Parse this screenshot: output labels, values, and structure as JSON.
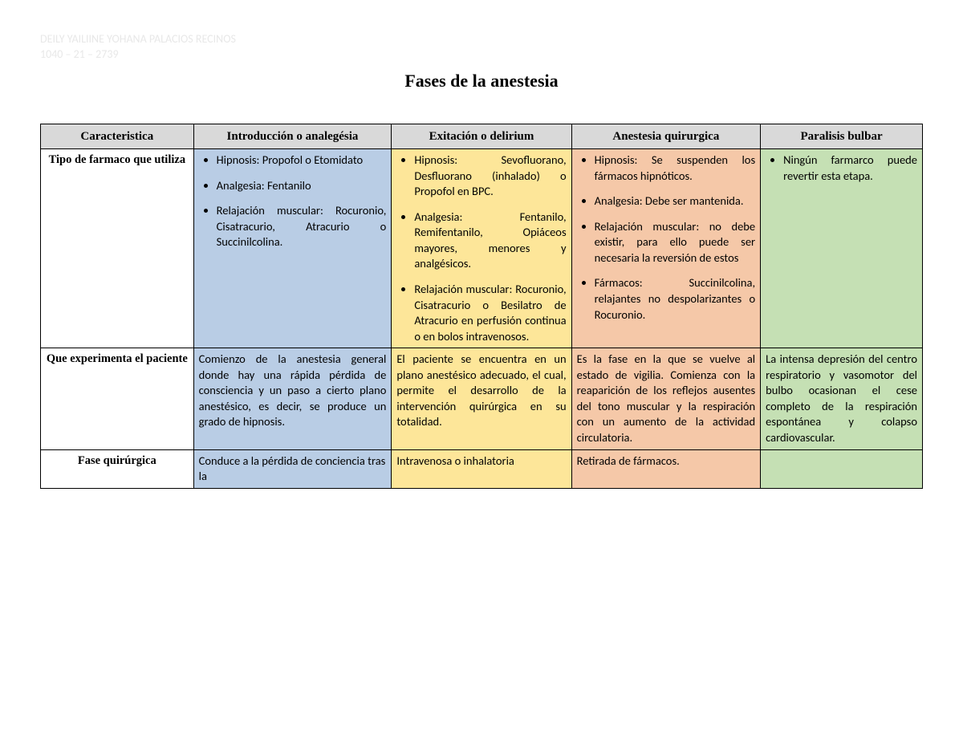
{
  "watermark": {
    "line1": "DEILY YAILIINE YOHANA PALACIOS RECINOS",
    "line2": "1040 – 21 – 2739"
  },
  "title": "Fases de la anestesia",
  "colors": {
    "header_bg": "#d9d9d9",
    "col1_bg": "#b9cde5",
    "col2_bg": "#fde699",
    "col3_bg": "#f5c8a8",
    "col4_bg": "#c5e0b4"
  },
  "col_widths": [
    "170px",
    "220px",
    "200px",
    "210px",
    "180px"
  ],
  "headers": [
    "Caracteristica",
    "Introducción o analegésia",
    "Exitación o delirium",
    "Anestesia quirurgica",
    "Paralisis bulbar"
  ],
  "rows": [
    {
      "label": "Tipo de farmaco que utiliza",
      "cells": [
        {
          "type": "list",
          "items": [
            "Hipnosis: Propofol o Etomidato",
            "Analgesia: Fentanilo",
            "Relajación muscular: Rocuronio, Cisatracurio, Atracurio o Succinilcolina."
          ]
        },
        {
          "type": "list",
          "items": [
            "Hipnosis: Sevofluorano, Desfluorano (inhalado) o Propofol en BPC.",
            "Analgesia: Fentanilo, Remifentanilo, Opiáceos mayores, menores y analgésicos.",
            "Relajación muscular: Rocuronio, Cisatracurio o Besilatro de Atracurio en perfusión continua o en bolos intravenosos."
          ]
        },
        {
          "type": "list",
          "items": [
            "Hipnosis: Se suspenden los fármacos hipnóticos.",
            "Analgesia: Debe ser mantenida.",
            "Relajación muscular: no debe existir, para ello puede ser necesaria la reversión de estos",
            "Fármacos: Succinilcolina, relajantes no despolarizantes o Rocuronio."
          ]
        },
        {
          "type": "list",
          "items": [
            "Ningún farmarco puede revertir esta etapa."
          ]
        }
      ]
    },
    {
      "label": "Que experimenta el paciente",
      "cells": [
        {
          "type": "text",
          "text": "Comienzo de la anestesia general donde hay una rápida pérdida de consciencia y un paso a cierto plano anestésico, es decir, se produce un grado de hipnosis."
        },
        {
          "type": "text",
          "text": "El paciente se encuentra en un plano anestésico adecuado, el cual, permite el desarrollo de la intervención quirúrgica en su totalidad."
        },
        {
          "type": "text",
          "text": "Es la fase en la que se vuelve al estado de vigilia. Comienza con la reaparición de los reflejos ausentes del tono muscular y la respiración con un aumento de la actividad circulatoria."
        },
        {
          "type": "text",
          "text": "La intensa depresión del centro respiratorio y vasomotor del bulbo ocasionan el cese completo de la respiración espontánea y colapso cardiovascular."
        }
      ]
    },
    {
      "label": "Fase quirúrgica",
      "cells": [
        {
          "type": "text",
          "text": "Conduce a la pérdida de conciencia tras la",
          "noJust": true
        },
        {
          "type": "text",
          "text": "Intravenosa o inhalatoria",
          "noJust": true
        },
        {
          "type": "text",
          "text": "Retirada de fármacos.",
          "noJust": true
        },
        {
          "type": "text",
          "text": ""
        }
      ]
    }
  ]
}
